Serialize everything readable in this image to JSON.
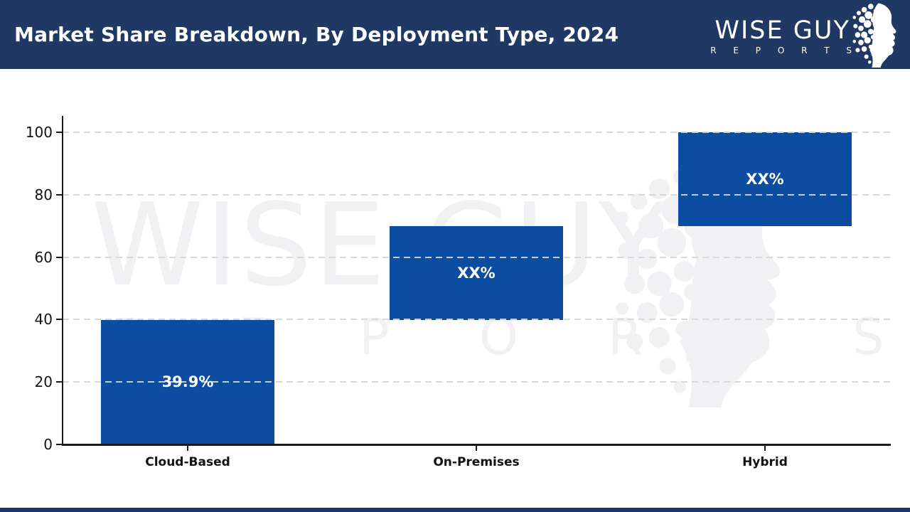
{
  "header": {
    "title": "Market Share Breakdown, By Deployment Type, 2024",
    "logo": {
      "line1": "WISE GUY",
      "line2": "R E P O R T S"
    }
  },
  "watermark": {
    "line1": "WISE GUY",
    "line2": "R E P O R T S"
  },
  "chart_data": {
    "type": "bar",
    "subtype": "floating-breakdown-waterfall",
    "title": "Market Share Breakdown, By Deployment Type, 2024",
    "categories": [
      "Cloud-Based",
      "On-Premises",
      "Hybrid"
    ],
    "segments": [
      {
        "category": "Cloud-Based",
        "from": 0,
        "to": 39.9,
        "label": "39.9%"
      },
      {
        "category": "On-Premises",
        "from": 39.9,
        "to": 69.9,
        "label": "XX%"
      },
      {
        "category": "Hybrid",
        "from": 69.9,
        "to": 100,
        "label": "XX%"
      }
    ],
    "y_ticks": [
      0,
      20,
      40,
      60,
      80,
      100
    ],
    "ylim": [
      0,
      105
    ],
    "xlabel": "",
    "ylabel": "",
    "grid": "dashed-horizontal",
    "legend": "none",
    "bar_color": "#0c4da2",
    "bar_label_color": "#ffffff",
    "header_bg": "#203864",
    "grid_color": "#d6d6d6",
    "axis_color": "#1a1a1a"
  }
}
